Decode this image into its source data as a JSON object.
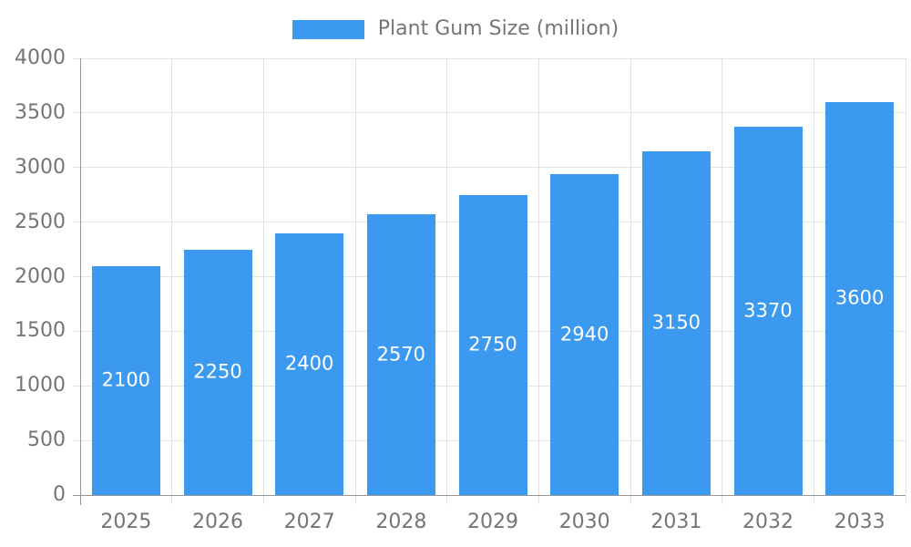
{
  "chart_data": {
    "type": "bar",
    "title": "",
    "legend": {
      "label": "Plant Gum Size (million)",
      "position": "top-center"
    },
    "categories": [
      "2025",
      "2026",
      "2027",
      "2028",
      "2029",
      "2030",
      "2031",
      "2032",
      "2033"
    ],
    "series": [
      {
        "name": "Plant Gum Size (million)",
        "values": [
          2100,
          2250,
          2400,
          2570,
          2750,
          2940,
          3150,
          3370,
          3600
        ]
      }
    ],
    "bar_value_labels": [
      "2100",
      "2250",
      "2400",
      "2570",
      "2750",
      "2940",
      "3150",
      "3370",
      "3600"
    ],
    "y_axis": {
      "min": 0,
      "max": 4000,
      "tick_step": 500,
      "tick_labels": [
        "0",
        "500",
        "1000",
        "1500",
        "2000",
        "2500",
        "3000",
        "3500",
        "4000"
      ]
    },
    "x_axis": {
      "tick_labels": [
        "2025",
        "2026",
        "2027",
        "2028",
        "2029",
        "2030",
        "2031",
        "2032",
        "2033"
      ]
    },
    "grid": true,
    "bar_label_position": "inside-middle",
    "colors": {
      "bar": "#3C99F0",
      "bar_label": "#FFFFFF",
      "axis_text": "#757575",
      "axis_line": "#969696",
      "grid_line": "#E2E2E2",
      "background": "#FFFFFF"
    }
  }
}
